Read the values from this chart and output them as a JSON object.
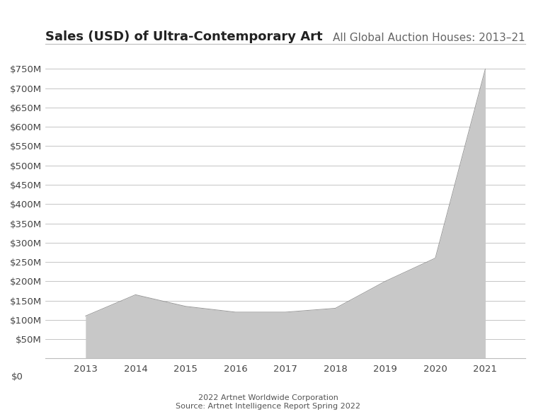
{
  "years": [
    2013,
    2014,
    2015,
    2016,
    2017,
    2018,
    2019,
    2020,
    2021
  ],
  "values": [
    110,
    165,
    135,
    120,
    120,
    130,
    200,
    260,
    750
  ],
  "fill_color": "#c8c8c8",
  "line_color": "#999999",
  "title_left": "Sales (USD) of Ultra-Contemporary Art",
  "title_right": "All Global Auction Houses: 2013–21",
  "ylabel_ticks": [
    "$50M",
    "$100M",
    "$150M",
    "$200M",
    "$250M",
    "$300M",
    "$350M",
    "$400M",
    "$450M",
    "$500M",
    "$550M",
    "$600M",
    "$650M",
    "$700M",
    "$750M"
  ],
  "ytick_values": [
    50,
    100,
    150,
    200,
    250,
    300,
    350,
    400,
    450,
    500,
    550,
    600,
    650,
    700,
    750
  ],
  "ylim": [
    0,
    790
  ],
  "xlim": [
    2012.2,
    2021.8
  ],
  "footnote_line1": "2022 Artnet Worldwide Corporation",
  "footnote_line2": "Source: Artnet Intelligence Report Spring 2022",
  "bg_color": "#ffffff",
  "grid_color": "#bbbbbb",
  "title_fontsize": 13,
  "subtitle_fontsize": 11,
  "tick_fontsize": 9.5,
  "footnote_fontsize": 8
}
